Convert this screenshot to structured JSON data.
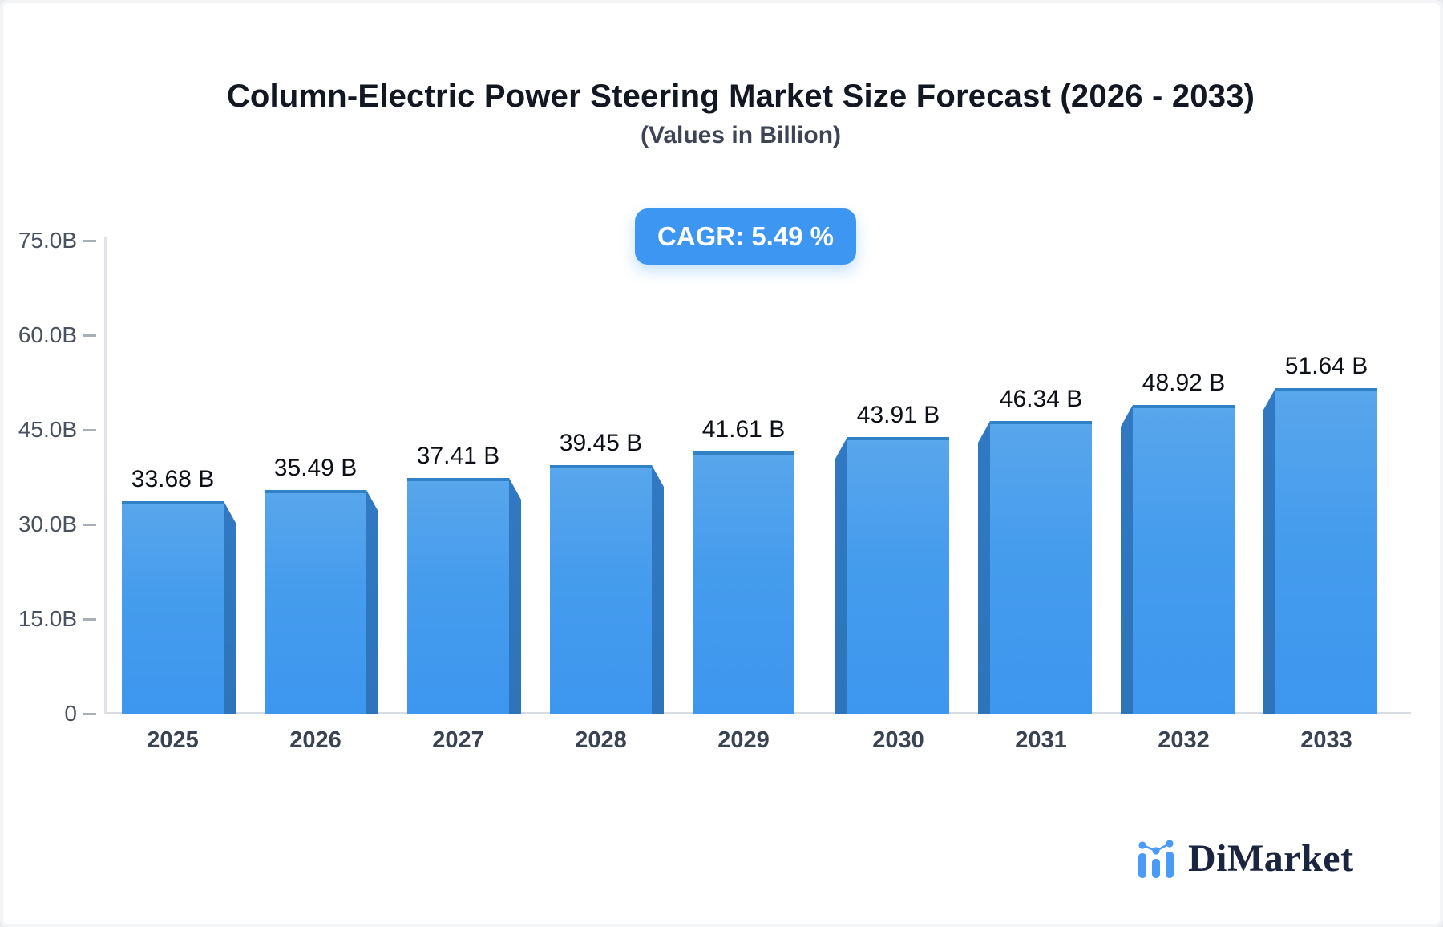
{
  "header": {
    "title": "Column-Electric Power Steering Market Size Forecast (2026 - 2033)",
    "subtitle": "(Values in Billion)",
    "cagr_label": "CAGR: 5.49 %"
  },
  "chart_data": {
    "type": "bar",
    "title": "Column-Electric Power Steering Market Size Forecast (2026 - 2033)",
    "subtitle": "(Values in Billion)",
    "unit": "Billion",
    "cagr_percent": "5.49 %",
    "categories": [
      "2025",
      "2026",
      "2027",
      "2028",
      "2029",
      "2030",
      "2031",
      "2032",
      "2033"
    ],
    "values": [
      33.68,
      35.49,
      37.41,
      39.45,
      41.61,
      43.91,
      46.34,
      48.92,
      51.64
    ],
    "value_labels": [
      "33.68 B",
      "35.49 B",
      "37.41 B",
      "39.45 B",
      "41.61 B",
      "43.91 B",
      "46.34 B",
      "48.92 B",
      "51.64 B"
    ],
    "y_tick_labels": [
      "75.0B",
      "60.0B",
      "45.0B",
      "30.0B",
      "15.0B",
      "0"
    ],
    "ylim": [
      0,
      75
    ],
    "xlabel": "",
    "ylabel": "",
    "grid": false,
    "legend": false
  },
  "branding": {
    "logo_text": "DiMarket",
    "logo_icon": "bar-chart-logo-icon"
  },
  "colors": {
    "bar_front": "#459ced",
    "bar_side": "#2d74ba",
    "bar_top_edge": "#3181c6",
    "badge_background": "#3d97f2",
    "badge_text": "#ffffff",
    "axis_line": "#d8dce0",
    "tick_dash": "#a9afb9",
    "title_text": "#121721",
    "subtitle_text": "#3d4554",
    "year_label_text": "#3a4352",
    "logo_text_color": "#1c2540",
    "logo_icon_blue": "#4a9bf5"
  }
}
